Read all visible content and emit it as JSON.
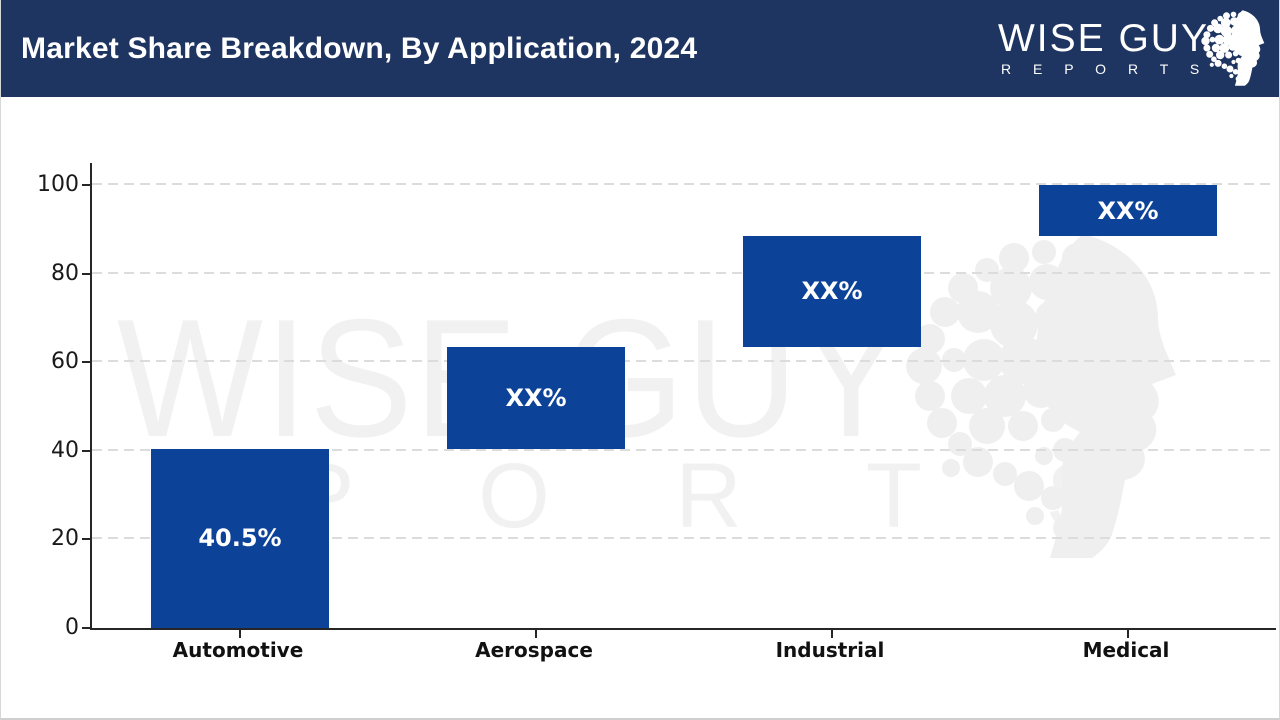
{
  "page": {
    "bg": "#ffffff",
    "border_color": "#d7d7d7"
  },
  "header": {
    "bg_color": "#1e3461",
    "title": "Market Share Breakdown, By Application, 2024",
    "logo": {
      "name": "WISE GUY",
      "sub": "R E P O R T S"
    }
  },
  "watermark": {
    "line1": "WISE GUY",
    "line2": "P O R T S",
    "color": "#f1f1f1"
  },
  "chart_data": {
    "type": "bar",
    "subtype": "waterfall",
    "title": "Market Share Breakdown, By Application, 2024",
    "categories": [
      "Automotive",
      "Aerospace",
      "Industrial",
      "Medical"
    ],
    "segments": [
      {
        "category": "Automotive",
        "start": 0,
        "end": 40.5,
        "label": "40.5%"
      },
      {
        "category": "Aerospace",
        "start": 40.5,
        "end": 63.5,
        "label": "XX%"
      },
      {
        "category": "Industrial",
        "start": 63.5,
        "end": 88.5,
        "label": "XX%"
      },
      {
        "category": "Medical",
        "start": 88.5,
        "end": 100,
        "label": "XX%"
      }
    ],
    "yticks": [
      0,
      20,
      40,
      60,
      80,
      100
    ],
    "ylim": [
      0,
      105
    ],
    "axis_max": 105,
    "unit": "percent",
    "bar_color": "#0d4299",
    "bar_label_color": "#ffffff",
    "grid": {
      "show": true,
      "style": "dashed",
      "orientation": "horizontal",
      "color": "#dcdcdc"
    },
    "legend": null,
    "xlabel": "",
    "ylabel": ""
  }
}
